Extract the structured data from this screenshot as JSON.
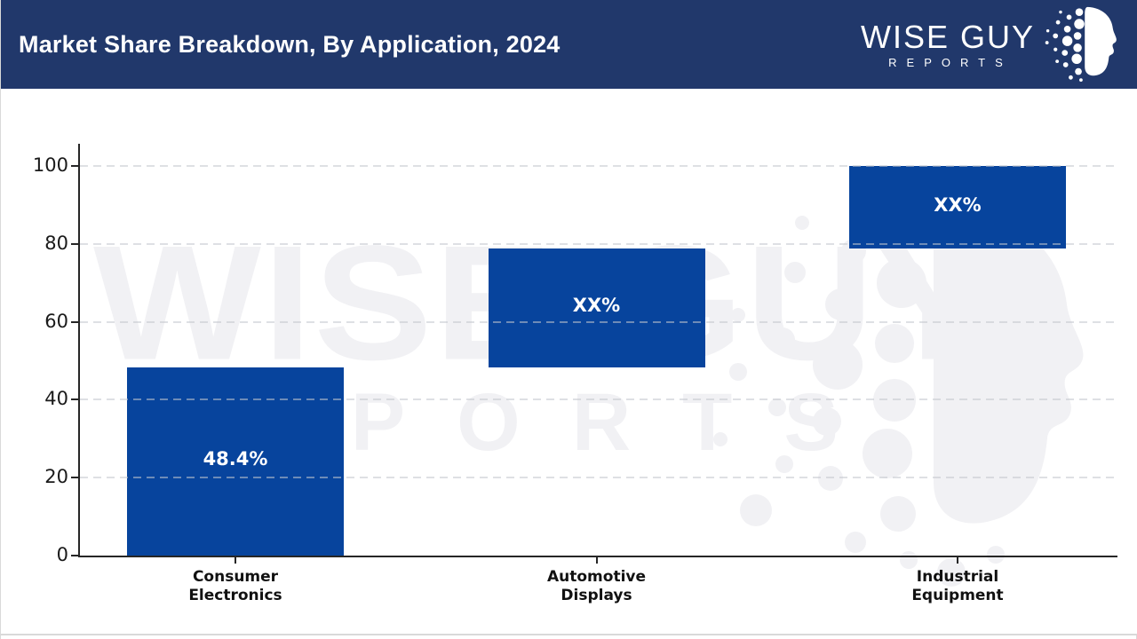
{
  "header": {
    "title": "Market Share Breakdown, By Application, 2024",
    "logo": {
      "line1": "WISE GUY",
      "line2": "REPORTS"
    }
  },
  "watermark": {
    "line1": "WISE GUY",
    "line2": "REPORTS"
  },
  "chart_data": {
    "type": "bar",
    "subtype": "waterfall",
    "title": "Market Share Breakdown, By Application, 2024",
    "categories": [
      "Consumer\nElectronics",
      "Automotive\nDisplays",
      "Industrial\nEquipment"
    ],
    "bars": [
      {
        "category": "Consumer Electronics",
        "start": 0,
        "end": 48.4,
        "label": "48.4%"
      },
      {
        "category": "Automotive Displays",
        "start": 48.4,
        "end": 78.8,
        "label": "XX%"
      },
      {
        "category": "Industrial Equipment",
        "start": 78.8,
        "end": 100,
        "label": "XX%"
      }
    ],
    "xlabel": "",
    "ylabel": "",
    "ylim": [
      0,
      105
    ],
    "yticks": [
      0,
      20,
      40,
      60,
      80,
      100
    ],
    "grid": "horizontal-dashed",
    "legend": "none",
    "bar_color": "#07449d",
    "label_color": "#ffffff",
    "header_color": "#21386b"
  }
}
